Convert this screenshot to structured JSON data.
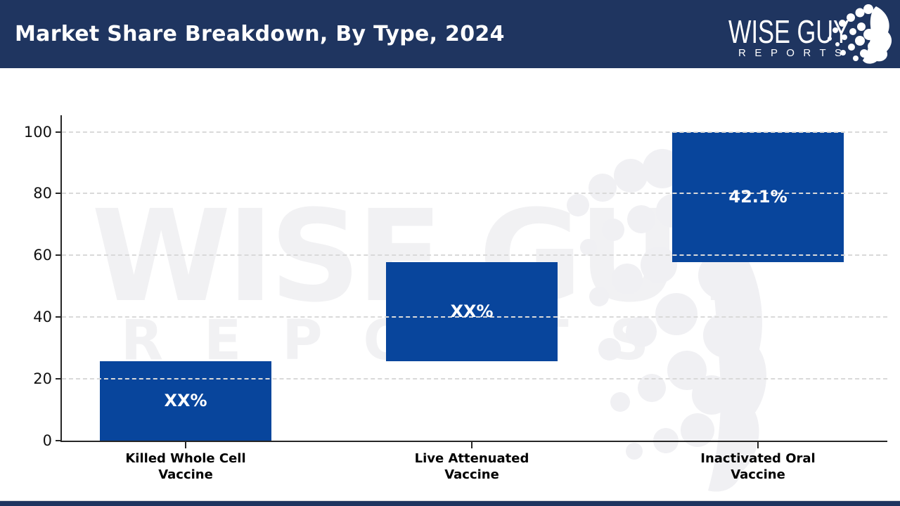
{
  "header": {
    "title": "Market Share Breakdown, By Type, 2024",
    "logo": {
      "wordmark": "WISE GUY",
      "subtext": "REPORTS"
    }
  },
  "watermark": {
    "wordmark": "WISE GUY",
    "subtext": "REPORTS"
  },
  "colors": {
    "header_bg": "#1f3560",
    "bar": "#08459c",
    "grid": "#d9d9d9",
    "axis": "#262626",
    "watermark": "#f1f1f3",
    "bar_label_text": "#ffffff"
  },
  "chart_data": {
    "type": "bar",
    "subtype": "waterfall",
    "title": "Market Share Breakdown, By Type, 2024",
    "unit": "%",
    "categories": [
      [
        "Killed Whole Cell",
        "Vaccine"
      ],
      [
        "Live Attenuated",
        "Vaccine"
      ],
      [
        "Inactivated Oral",
        "Vaccine"
      ]
    ],
    "segments": [
      {
        "category": "Killed Whole Cell Vaccine",
        "slug": "killed-whole-cell-vaccine",
        "start": 0,
        "end": 25.8,
        "value": 25.8,
        "label": "XX%"
      },
      {
        "category": "Live Attenuated Vaccine",
        "slug": "live-attenuated-vaccine",
        "start": 25.8,
        "end": 57.9,
        "value": 32.1,
        "label": "XX%"
      },
      {
        "category": "Inactivated Oral Vaccine",
        "slug": "inactivated-oral-vaccine",
        "start": 57.9,
        "end": 100,
        "value": 42.1,
        "label": "42.1%"
      }
    ],
    "yticks": [
      0,
      20,
      40,
      60,
      80,
      100
    ],
    "ylim": [
      0,
      105
    ],
    "xlabel": "",
    "ylabel": "",
    "legend": "none",
    "grid": "horizontal dashed, drawn above bars",
    "notes": "floating waterfall-style market share bars; XX% values masked in sample"
  }
}
